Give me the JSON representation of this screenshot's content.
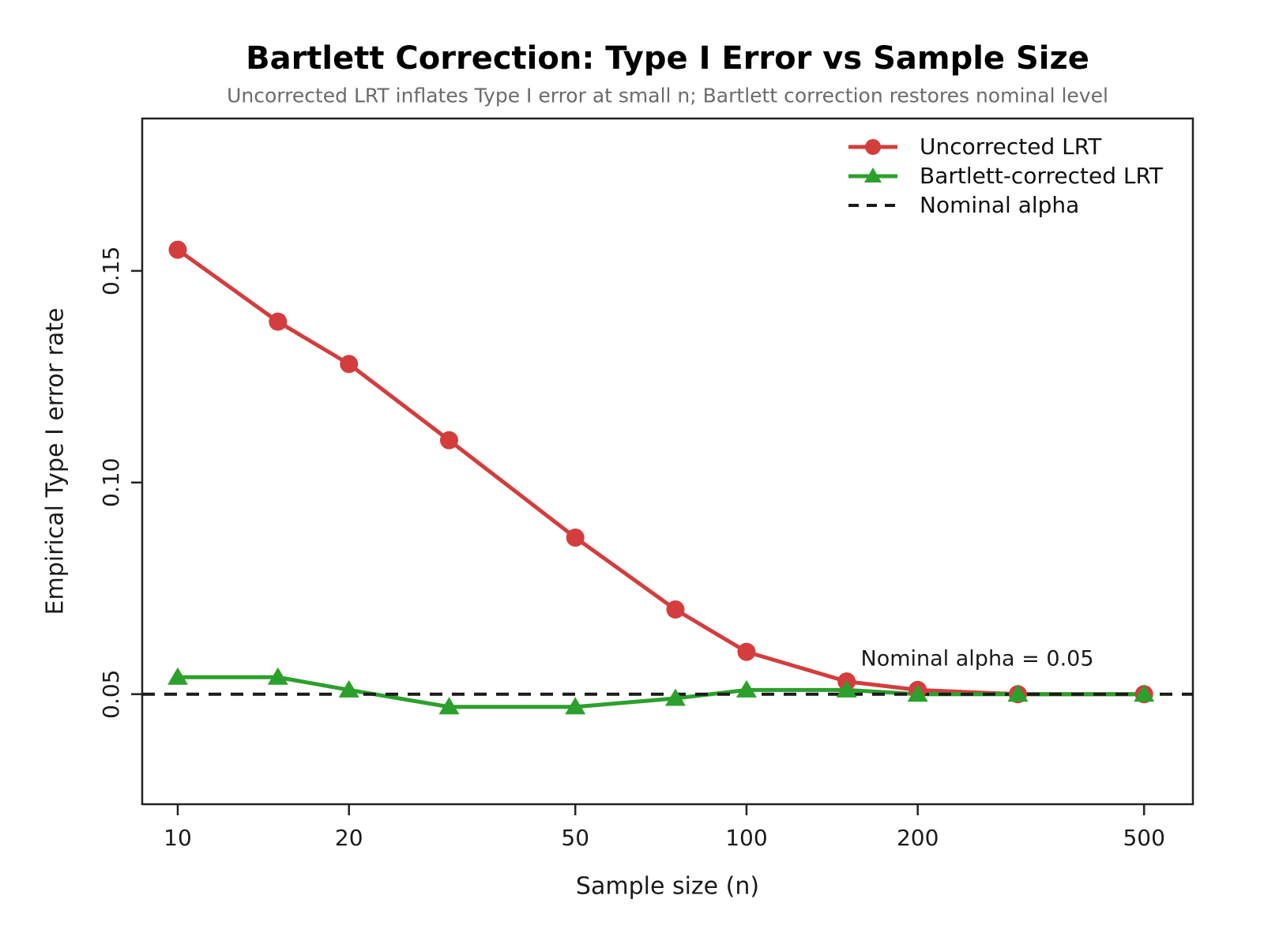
{
  "chart_data": {
    "type": "line",
    "title": "Bartlett Correction: Type I Error vs Sample Size",
    "subtitle": "Uncorrected LRT inflates Type I error at small n; Bartlett correction restores nominal level",
    "xlabel": "Sample size (n)",
    "ylabel": "Empirical Type I error rate",
    "x_scale": "log",
    "xlim": [
      8.66,
      609.3
    ],
    "ylim": [
      0.024,
      0.186
    ],
    "grid": false,
    "x_ticks": [
      10,
      20,
      50,
      100,
      200,
      500
    ],
    "x_tick_labels": [
      "10",
      "20",
      "50",
      "100",
      "200",
      "500"
    ],
    "y_ticks": [
      0.05,
      0.1,
      0.15
    ],
    "y_tick_labels": [
      "0.05",
      "0.10",
      "0.15"
    ],
    "x": [
      10,
      15,
      20,
      30,
      50,
      75,
      100,
      150,
      200,
      300,
      500
    ],
    "series": [
      {
        "name": "Uncorrected LRT",
        "marker": "circle",
        "color": "#d43d3d",
        "values": [
          0.155,
          0.138,
          0.128,
          0.11,
          0.087,
          0.07,
          0.06,
          0.053,
          0.051,
          0.05,
          0.05
        ]
      },
      {
        "name": "Bartlett-corrected LRT",
        "marker": "triangle",
        "color": "#2ca02c",
        "values": [
          0.054,
          0.054,
          0.051,
          0.047,
          0.047,
          0.049,
          0.051,
          0.051,
          0.05,
          0.05,
          0.05
        ]
      }
    ],
    "reference_line": {
      "label": "Nominal alpha",
      "value": 0.05,
      "style": "dashed",
      "color": "#1a1a1a"
    },
    "annotation": "Nominal alpha = 0.05",
    "legend": [
      "Uncorrected LRT",
      "Bartlett-corrected LRT",
      "Nominal alpha"
    ],
    "legend_position": "upper right",
    "colors": {
      "frame": "#222222",
      "text": "#1a1a1a",
      "subtitle": "#6b6b6b",
      "background": "#ffffff"
    }
  }
}
